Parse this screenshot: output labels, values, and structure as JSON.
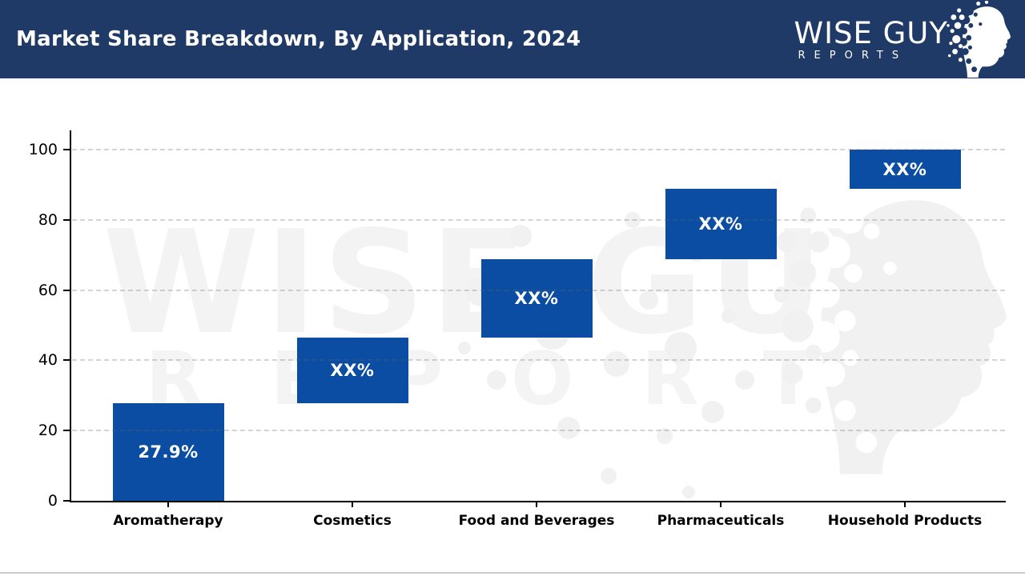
{
  "header": {
    "title": "Market Share Breakdown, By Application, 2024",
    "bg_color": "#203a68",
    "logo": {
      "line1": "WISE GUY",
      "line2": "REPORTS"
    }
  },
  "watermark": {
    "line1": "WISE GUY",
    "line2": "REPORTS"
  },
  "chart_data": {
    "type": "bar",
    "variant": "waterfall",
    "title": "Market Share Breakdown, By Application, 2024",
    "categories": [
      "Aromatherapy",
      "Cosmetics",
      "Food and Beverages",
      "Pharmaceuticals",
      "Household Products"
    ],
    "segments": [
      {
        "category": "Aromatherapy",
        "start": 0,
        "end": 27.9,
        "label": "27.9%"
      },
      {
        "category": "Cosmetics",
        "start": 27.9,
        "end": 46.5,
        "label": "XX%"
      },
      {
        "category": "Food and Beverages",
        "start": 46.5,
        "end": 68.8,
        "label": "XX%"
      },
      {
        "category": "Pharmaceuticals",
        "start": 68.8,
        "end": 88.8,
        "label": "XX%"
      },
      {
        "category": "Household Products",
        "start": 88.8,
        "end": 100,
        "label": "XX%"
      }
    ],
    "xlabel": "",
    "ylabel": "",
    "ylim": [
      0,
      100
    ],
    "yticks": [
      0,
      20,
      40,
      60,
      80,
      100
    ],
    "grid": {
      "axis": "y",
      "style": "dashed"
    },
    "legend": "none",
    "bar_color": "#0b4da2",
    "bar_label_color": "#ffffff",
    "axis_color": "#000000"
  }
}
